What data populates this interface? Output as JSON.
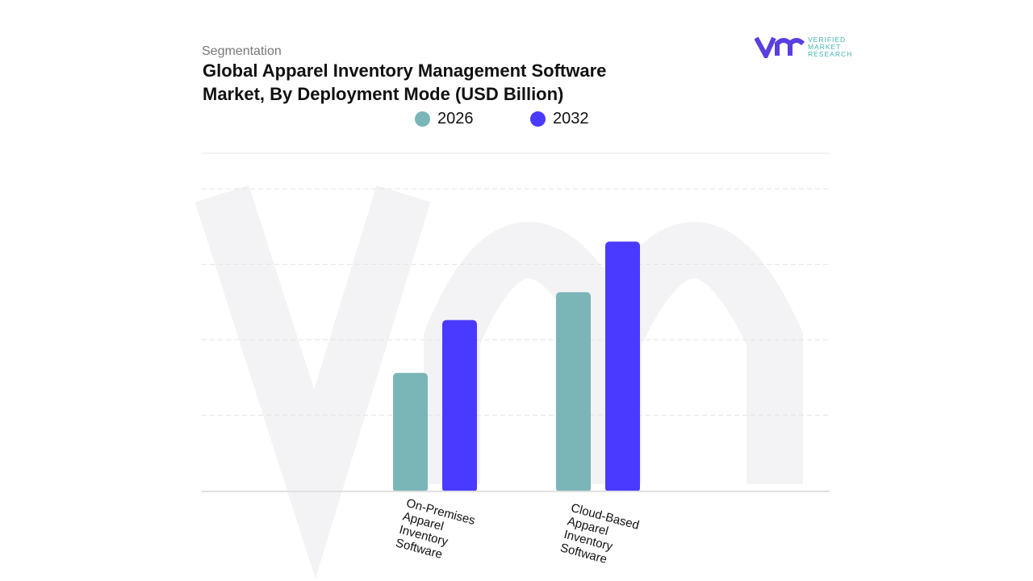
{
  "header": {
    "subtitle": "Segmentation",
    "logo_text": [
      "VERIFIED",
      "MARKET",
      "RESEARCH"
    ]
  },
  "chart_data": {
    "type": "bar",
    "title": "Global Apparel Inventory Management Software Market, By Deployment Mode (USD Billion)",
    "categories": [
      "On-Premises Apparel Inventory Software",
      "Cloud-Based Apparel Inventory Software"
    ],
    "series": [
      {
        "name": "2026",
        "color": "#7ab5b8",
        "values": [
          1.56,
          2.63
        ]
      },
      {
        "name": "2032",
        "color": "#4a3aff",
        "values": [
          2.26,
          3.3
        ]
      }
    ],
    "ylim": [
      0,
      4.47
    ],
    "grid": true,
    "legend": "top-center",
    "xlabel": "",
    "ylabel": ""
  }
}
